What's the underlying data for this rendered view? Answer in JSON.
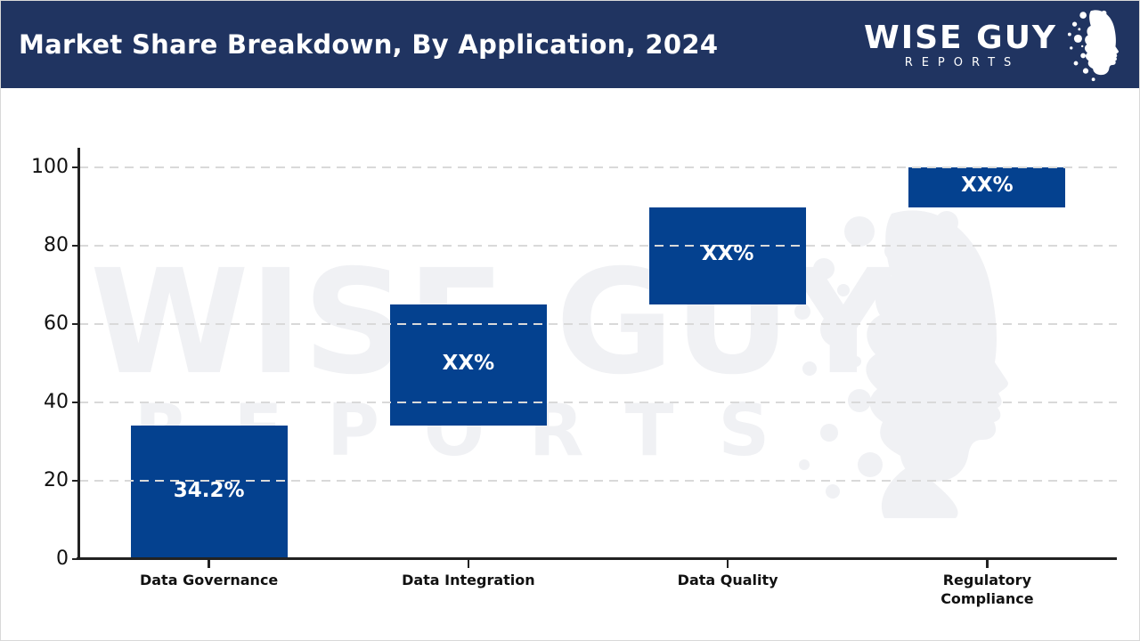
{
  "header": {
    "title": "Market Share Breakdown, By Application, 2024",
    "logo": {
      "line1": "WISE GUY",
      "line2": "REPORTS"
    }
  },
  "watermark": {
    "line1": "WISE GUY",
    "line2": "REPORTS"
  },
  "colors": {
    "header_bg": "#203461",
    "bar_blue": "#04418f",
    "grid_gray": "#d9d9d9",
    "axis_dark": "#222222",
    "watermark_gray": "#f0f1f4",
    "title_text": "#ffffff"
  },
  "chart_data": {
    "type": "bar",
    "subtype": "waterfall",
    "title": "Market Share Breakdown, By Application, 2024",
    "categories": [
      "Data Governance",
      "Data Integration",
      "Data Quality",
      "Regulatory Compliance"
    ],
    "series": [
      {
        "name": "Market Share",
        "segments": [
          {
            "start": 0,
            "end": 34.2
          },
          {
            "start": 34.2,
            "end": 65
          },
          {
            "start": 65,
            "end": 89.8
          },
          {
            "start": 89.8,
            "end": 100
          }
        ]
      }
    ],
    "bar_labels": [
      "34.2%",
      "XX%",
      "XX%",
      "XX%"
    ],
    "xlabel": "",
    "ylabel": "",
    "ylim": [
      0,
      100
    ],
    "yticks": [
      0,
      20,
      40,
      60,
      80,
      100
    ],
    "grid": "horizontal-dashed",
    "legend": "none"
  }
}
